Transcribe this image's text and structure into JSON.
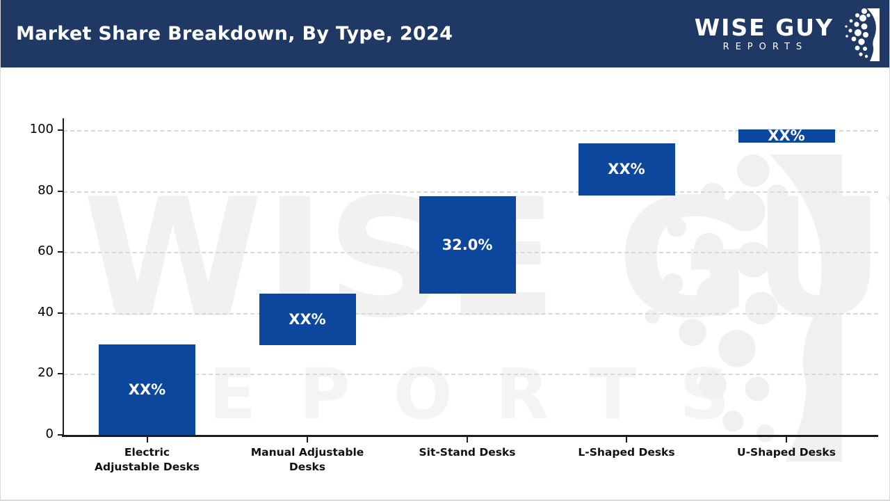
{
  "header": {
    "title": "Market Share Breakdown, By Type, 2024",
    "logo": {
      "line1": "WISE GUY",
      "line2": "REPORTS"
    }
  },
  "watermark": {
    "line1": "WISE GUY",
    "line2": "REPORTS"
  },
  "colors": {
    "header_bg": "#203864",
    "bar": "#0d479d",
    "grid": "#d8d8d8",
    "axis": "#1c1c1c",
    "bar_label_text": "#ffffff",
    "watermark_text": "#f1f1f1"
  },
  "chart_data": {
    "type": "bar",
    "subtype": "floating-waterfall",
    "title": "Market Share Breakdown, By Type, 2024",
    "xlabel": "",
    "ylabel": "",
    "ylim": [
      0,
      105
    ],
    "yticks": [
      0,
      20,
      40,
      60,
      80,
      100
    ],
    "grid": "horizontal-dashed",
    "legend": "none",
    "categories": [
      "Electric Adjustable Desks",
      "Manual Adjustable Desks",
      "Sit-Stand Desks",
      "L-Shaped Desks",
      "U-Shaped Desks"
    ],
    "category_lines": [
      [
        "Electric",
        "Adjustable Desks"
      ],
      [
        "Manual Adjustable",
        "Desks"
      ],
      [
        "Sit-Stand Desks"
      ],
      [
        "L-Shaped Desks"
      ],
      [
        "U-Shaped Desks"
      ]
    ],
    "segments": [
      {
        "start": 0,
        "end": 29.7,
        "size_pct": 29.7,
        "label": "XX%"
      },
      {
        "start": 29.5,
        "end": 46.3,
        "size_pct": 16.8,
        "label": "XX%"
      },
      {
        "start": 46.3,
        "end": 78.3,
        "size_pct": 32.0,
        "label": "32.0%"
      },
      {
        "start": 78.5,
        "end": 95.7,
        "size_pct": 17.2,
        "label": "XX%"
      },
      {
        "start": 95.9,
        "end": 100.3,
        "size_pct": 4.4,
        "label": "XX%"
      }
    ]
  }
}
